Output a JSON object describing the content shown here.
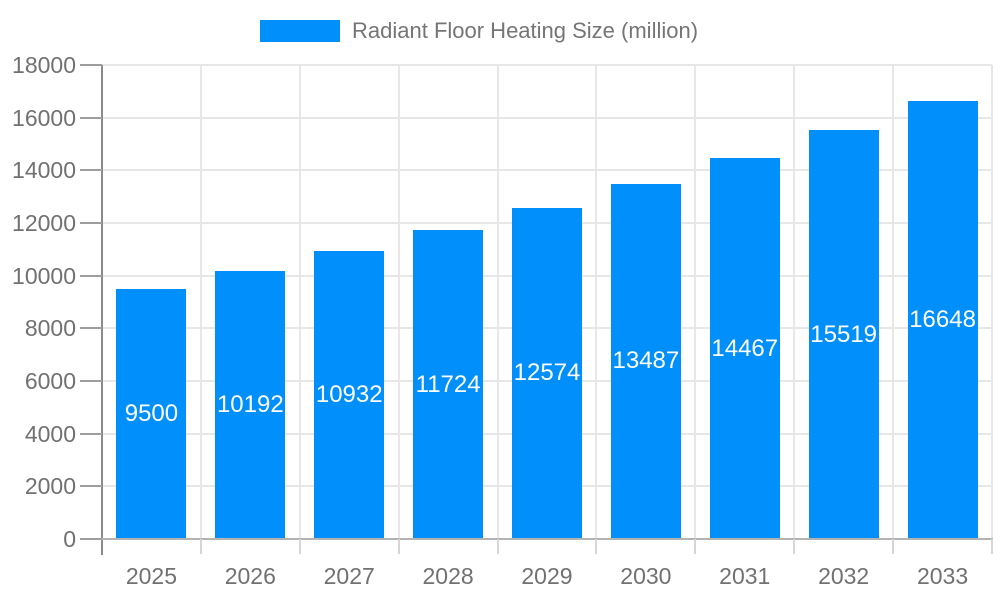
{
  "legend": {
    "label": "Radiant Floor Heating Size (million)"
  },
  "chart_data": {
    "type": "bar",
    "title": "Radiant Floor Heating Size (million)",
    "categories": [
      "2025",
      "2026",
      "2027",
      "2028",
      "2029",
      "2030",
      "2031",
      "2032",
      "2033"
    ],
    "values": [
      9500,
      10192,
      10932,
      11724,
      12574,
      13487,
      14467,
      15519,
      16648
    ],
    "series": [
      {
        "name": "Radiant Floor Heating Size (million)",
        "values": [
          9500,
          10192,
          10932,
          11724,
          12574,
          13487,
          14467,
          15519,
          16648
        ]
      }
    ],
    "xlabel": "",
    "ylabel": "",
    "ylim": [
      0,
      18000
    ],
    "ytick_step": 2000,
    "ytick_labels": [
      "0",
      "2000",
      "4000",
      "6000",
      "8000",
      "10000",
      "12000",
      "14000",
      "16000",
      "18000"
    ],
    "grid": true,
    "value_labels": "inside-bar-centered",
    "legend_position": "top-center",
    "colors": {
      "bar": "#008FFB",
      "value_label": "#ffffff",
      "grid": "#e7e7e7",
      "y_axis_line": "#8b8b8b",
      "x_axis_line": "#b3b3b3",
      "y_tick": "#9e9e9e",
      "x_tick": "#d6d6d6",
      "axis_text": "#717171",
      "legend_text": "#757575"
    }
  }
}
